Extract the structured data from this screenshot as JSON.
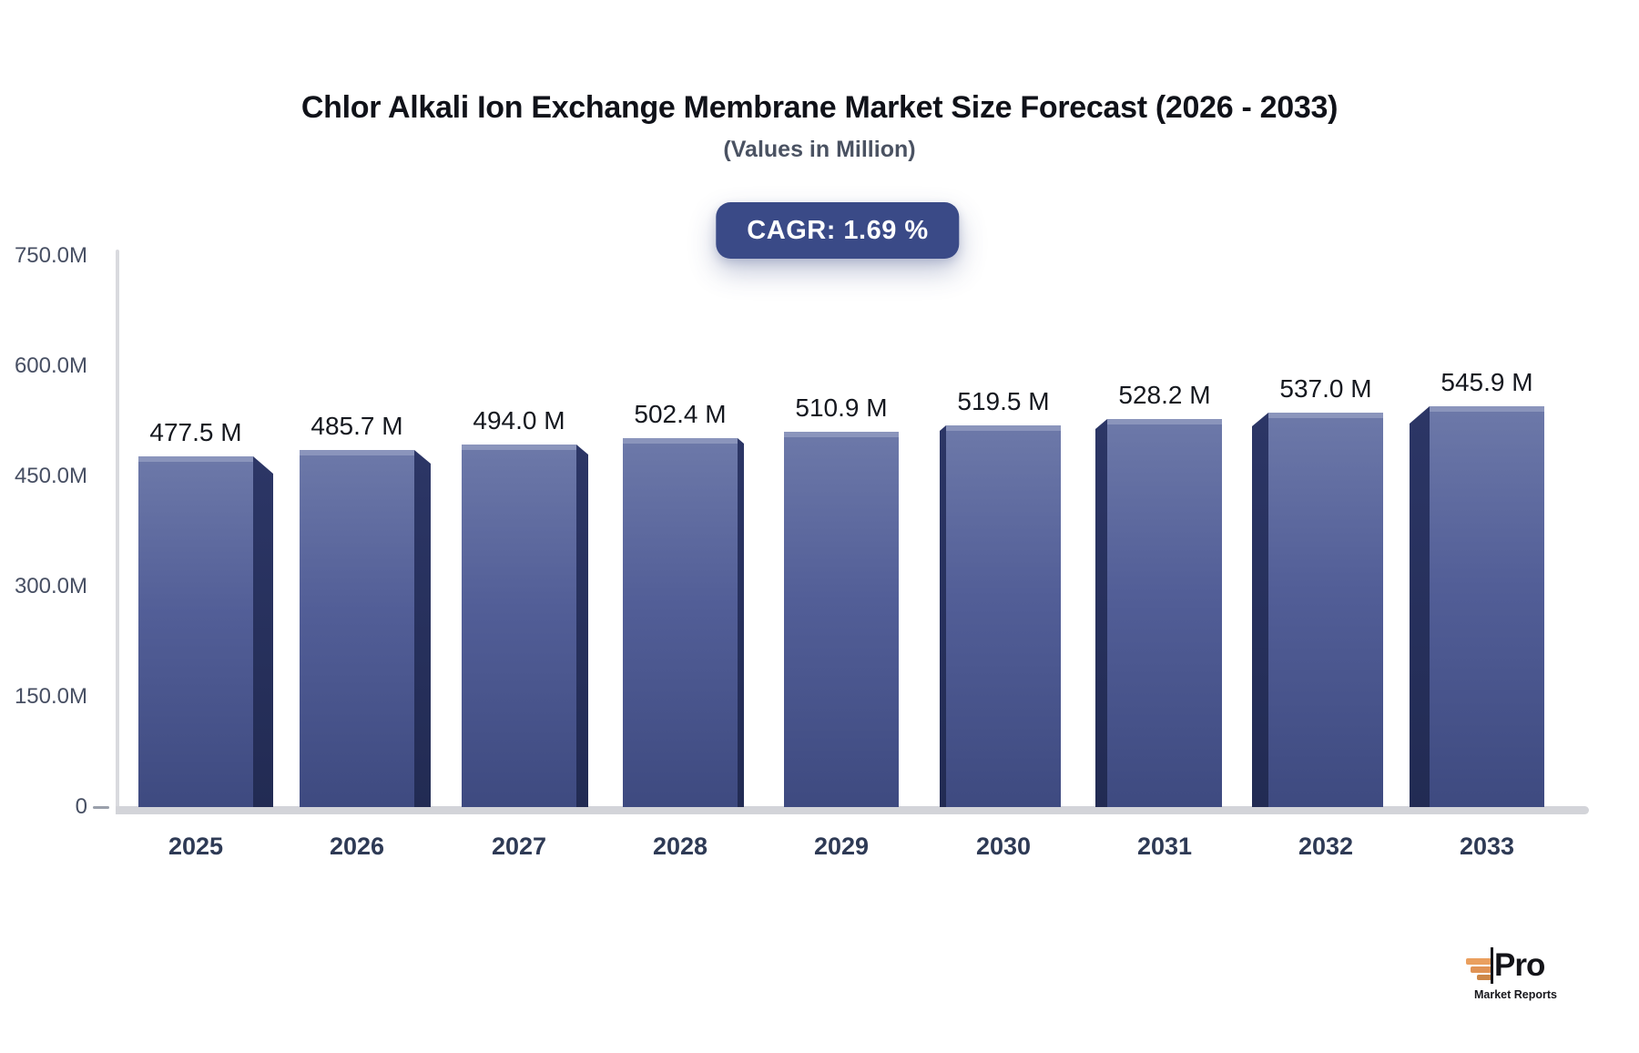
{
  "chart_data": {
    "type": "bar",
    "title": "Chlor Alkali Ion Exchange Membrane Market Size Forecast (2026 - 2033)",
    "subtitle": "(Values in Million)",
    "badge": "CAGR: 1.69 %",
    "categories": [
      "2025",
      "2026",
      "2027",
      "2028",
      "2029",
      "2030",
      "2031",
      "2032",
      "2033"
    ],
    "values": [
      477.5,
      485.7,
      494.0,
      502.4,
      510.9,
      519.5,
      528.2,
      537.0,
      545.9
    ],
    "value_labels": [
      "477.5 M",
      "485.7 M",
      "494.0 M",
      "502.4 M",
      "510.9 M",
      "519.5 M",
      "528.2 M",
      "537.0 M",
      "545.9 M"
    ],
    "unit": "Million",
    "xlabel": "",
    "ylabel": "",
    "ylim": [
      0,
      750
    ],
    "y_ticks": {
      "labels": [
        "750.0M",
        "600.0M",
        "450.0M",
        "300.0M",
        "150.0M",
        "0"
      ],
      "values": [
        750,
        600,
        450,
        300,
        150,
        0
      ]
    },
    "grid": false,
    "legend": false,
    "colors": {
      "bar_face_top": "#6d79a9",
      "bar_face_mid": "#525e97",
      "bar_face_bottom": "#3e4a80",
      "bar_top_edge": "#8b95bc",
      "bar_side": "#2c3666",
      "bar_side_dark": "#222b53",
      "axis_line": "#d9dade",
      "baseline": "#d3d4d9",
      "badge_bg": "#3a4a87",
      "badge_text": "#ffffff",
      "title_text": "#101219",
      "subtitle_text": "#4a5262",
      "tick_text": "#474f63",
      "year_text": "#2e3a55",
      "value_text": "#15181f"
    }
  },
  "logo": {
    "brand": "Pro",
    "tagline": "Market Reports",
    "bar_colors": [
      "#ea9f5e",
      "#e09355",
      "#cd8748"
    ]
  }
}
